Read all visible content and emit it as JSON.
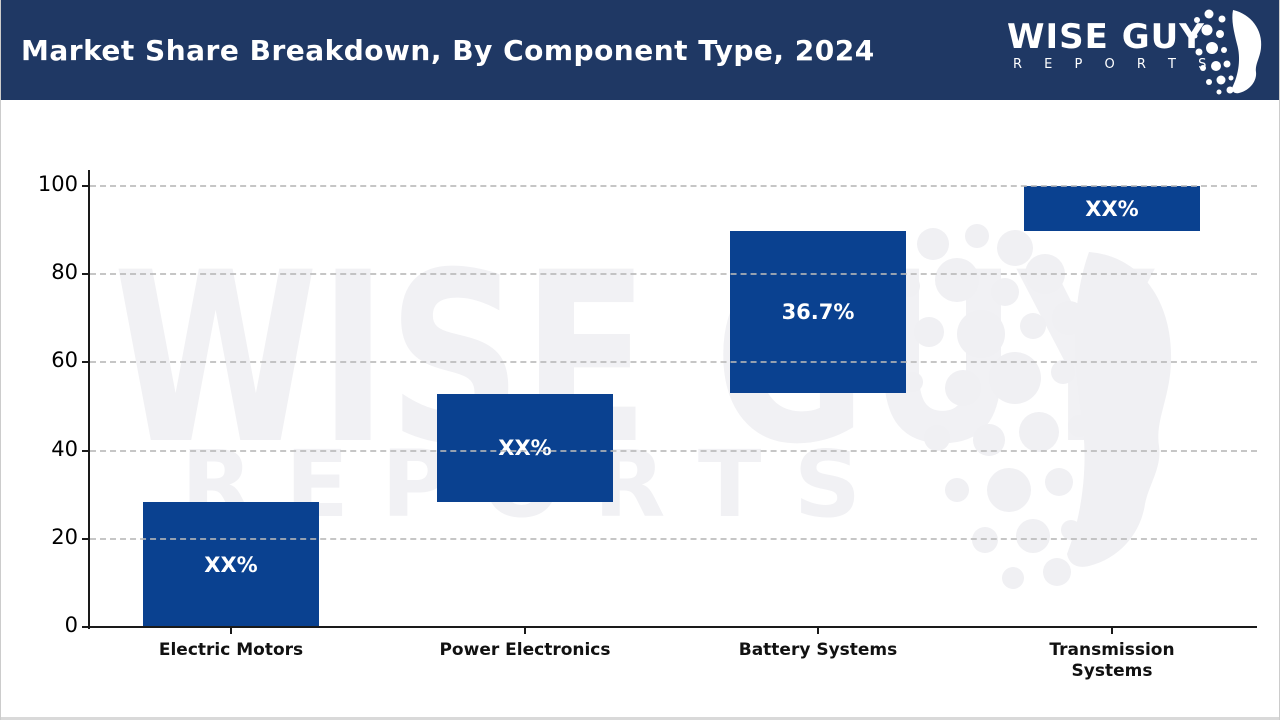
{
  "header": {
    "title": "Market Share Breakdown, By Component Type, 2024",
    "logo": {
      "brand": "WISE GUY",
      "sub": "R E P O R T S"
    }
  },
  "watermark": {
    "brand": "WISE GUY",
    "sub": "R E P O R T S"
  },
  "chart_data": {
    "type": "bar",
    "variant": "waterfall",
    "title": "Market Share Breakdown, By Component Type, 2024",
    "categories": [
      "Electric Motors",
      "Power Electronics",
      "Battery Systems",
      "Transmission Systems"
    ],
    "category_lines": [
      [
        "Electric Motors"
      ],
      [
        "Power Electronics"
      ],
      [
        "Battery Systems"
      ],
      [
        "Transmission",
        "Systems"
      ]
    ],
    "segments": [
      {
        "category": "Electric Motors",
        "start": 0,
        "end": 28.3,
        "label": "XX%"
      },
      {
        "category": "Power Electronics",
        "start": 28.3,
        "end": 52.9,
        "label": "XX%"
      },
      {
        "category": "Battery Systems",
        "start": 53.0,
        "end": 89.7,
        "label": "36.7%"
      },
      {
        "category": "Transmission Systems",
        "start": 89.7,
        "end": 100,
        "label": "XX%"
      }
    ],
    "xlabel": "",
    "ylabel": "",
    "yticks": [
      0,
      20,
      40,
      60,
      80,
      100
    ],
    "ylim": [
      0,
      107
    ],
    "grid": {
      "horizontal": true,
      "style": "dashed",
      "color": "#cccccc"
    },
    "legend": null,
    "bar_color": "#0a4190",
    "bar_label_color": "#ffffff",
    "axis_color": "#1a1a1a"
  },
  "colors": {
    "header_bg": "#1f3864",
    "bar": "#0a4190",
    "grid": "#cccccc",
    "watermark": "#f1f1f4",
    "title_text": "#ffffff"
  }
}
